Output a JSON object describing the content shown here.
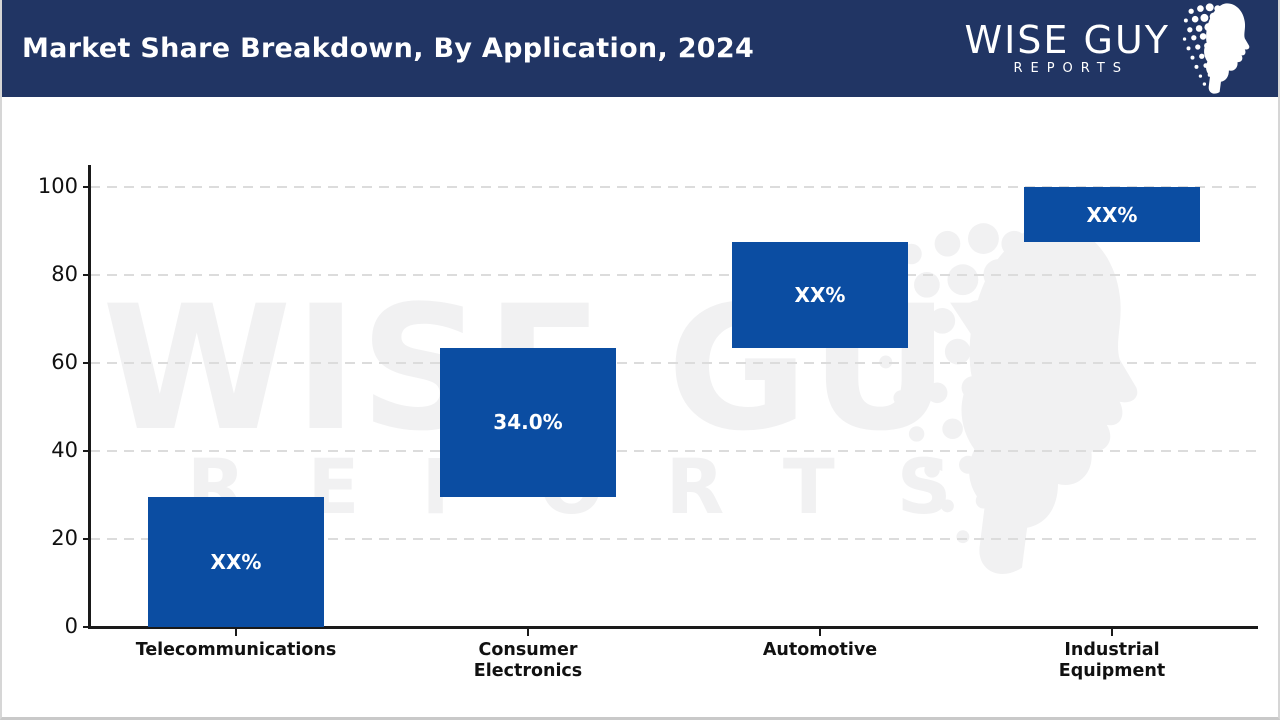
{
  "header": {
    "title": "Market Share Breakdown, By Application, 2024",
    "bg_color": "#213564",
    "logo": {
      "line1": "WISE GUY",
      "line2": "REPORTS"
    }
  },
  "watermark": {
    "line1": "WISE GUY",
    "line2": "REPORTS"
  },
  "chart_data": {
    "type": "bar",
    "subtype": "floating-waterfall",
    "title": "Market Share Breakdown, By Application, 2024",
    "categories": [
      [
        "Telecommunications"
      ],
      [
        "Consumer",
        "Electronics"
      ],
      [
        "Automotive"
      ],
      [
        "Industrial",
        "Equipment"
      ]
    ],
    "segments": [
      {
        "name": "Telecommunications",
        "start": 0,
        "end": 29.5,
        "label": "XX%"
      },
      {
        "name": "Consumer Electronics",
        "start": 29.5,
        "end": 63.5,
        "label": "34.0%"
      },
      {
        "name": "Automotive",
        "start": 63.5,
        "end": 87.5,
        "label": "XX%"
      },
      {
        "name": "Industrial Equipment",
        "start": 87.5,
        "end": 100,
        "label": "XX%"
      }
    ],
    "ylim": [
      0,
      100
    ],
    "yticks": [
      0,
      20,
      40,
      60,
      80,
      100
    ],
    "grid": "horizontal-dashed",
    "legend": "none",
    "bar_color": "#0b4da2",
    "bar_label_color": "#ffffff",
    "axis_color": "#1a1a1a",
    "gridline_color": "#dcdcdc"
  }
}
